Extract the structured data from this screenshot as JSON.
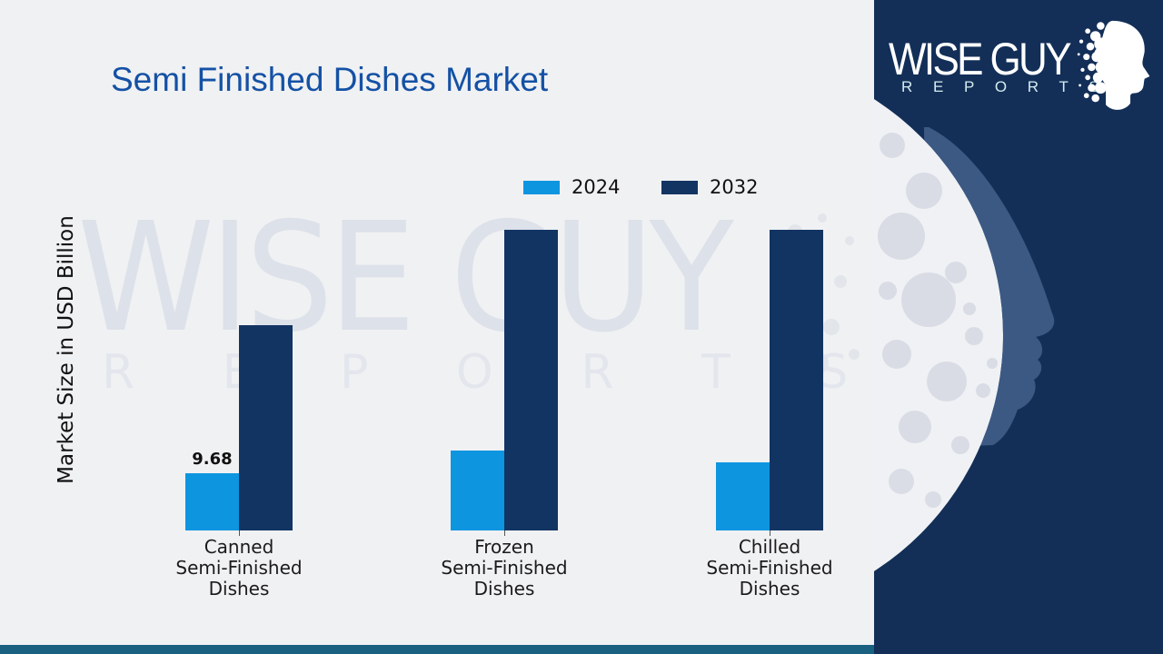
{
  "title": "Semi Finished Dishes Market",
  "watermark": {
    "line1": "WISE GUY",
    "line2": "R E P O R T S"
  },
  "brand": {
    "line1": "WISE GUY",
    "line2": "R E P O R T S"
  },
  "chart_data": {
    "type": "bar",
    "title": "Semi Finished Dishes Market",
    "xlabel": "",
    "ylabel": "Market Size in USD Billion",
    "categories": [
      "Canned Semi-Finished Dishes",
      "Frozen Semi-Finished Dishes",
      "Chilled Semi-Finished Dishes"
    ],
    "categories_lines": [
      [
        "Canned",
        "Semi-Finished",
        "Dishes"
      ],
      [
        "Frozen",
        "Semi-Finished",
        "Dishes"
      ],
      [
        "Chilled",
        "Semi-Finished",
        "Dishes"
      ]
    ],
    "series": [
      {
        "name": "2024",
        "color": "#0e95e0",
        "values": [
          9.68,
          13.5,
          11.5
        ]
      },
      {
        "name": "2032",
        "color": "#123463",
        "values": [
          34.7,
          50.9,
          50.9
        ]
      }
    ],
    "annotations": [
      {
        "series_index": 0,
        "category_index": 0,
        "text": "9.68"
      }
    ],
    "legend_position": "top",
    "grid": false,
    "ylim": [
      0,
      55
    ]
  },
  "colors": {
    "background": "#f0f1f3",
    "title_text": "#1451a5",
    "axis_text": "#111111",
    "series_2024": "#0e95e0",
    "series_2032": "#123463",
    "brand_panel": "#132f58",
    "face_silhouette": "#3c5983",
    "footer_bar": "#1a6080",
    "watermark_text": "#dde1e9"
  }
}
